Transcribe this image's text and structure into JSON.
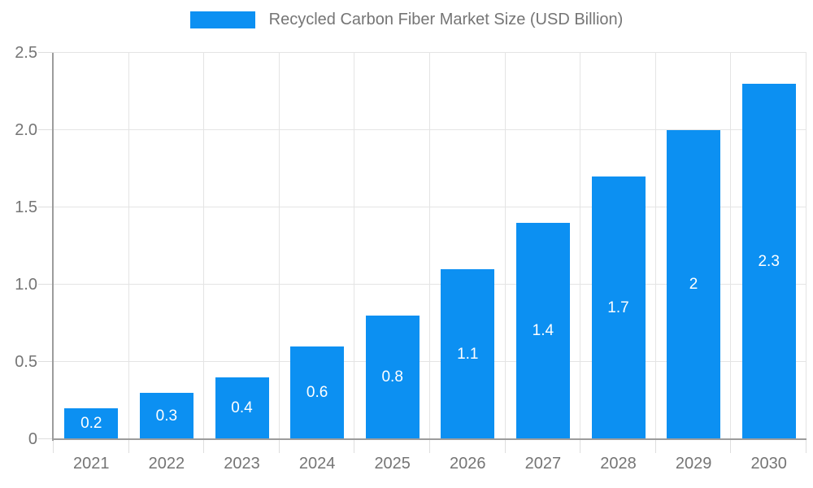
{
  "legend": {
    "label": "Recycled Carbon Fiber Market Size (USD Billion)"
  },
  "chart_data": {
    "type": "bar",
    "title": "Recycled Carbon Fiber Market Size (USD Billion)",
    "categories": [
      "2021",
      "2022",
      "2023",
      "2024",
      "2025",
      "2026",
      "2027",
      "2028",
      "2029",
      "2030"
    ],
    "values": [
      0.2,
      0.3,
      0.4,
      0.6,
      0.8,
      1.1,
      1.4,
      1.7,
      2,
      2.3
    ],
    "bar_labels": [
      "0.2",
      "0.3",
      "0.4",
      "0.6",
      "0.8",
      "1.1",
      "1.4",
      "1.7",
      "2",
      "2.3"
    ],
    "y_tick_values": [
      0,
      0.5,
      1,
      1.5,
      2,
      2.5
    ],
    "y_tick_labels": [
      "0",
      "0.5",
      "1.0",
      "1.5",
      "2.0",
      "2.5"
    ],
    "xlabel": "",
    "ylabel": "",
    "ylim": [
      0,
      2.5
    ],
    "grid": true,
    "legend_position": "top",
    "colors": {
      "bar": "#0c90f2",
      "axis_text": "#757575",
      "value_label": "#ffffff",
      "gridline": "#e4e4e4",
      "tick": "#dedede",
      "axis_line": "#9c9c9c"
    }
  }
}
